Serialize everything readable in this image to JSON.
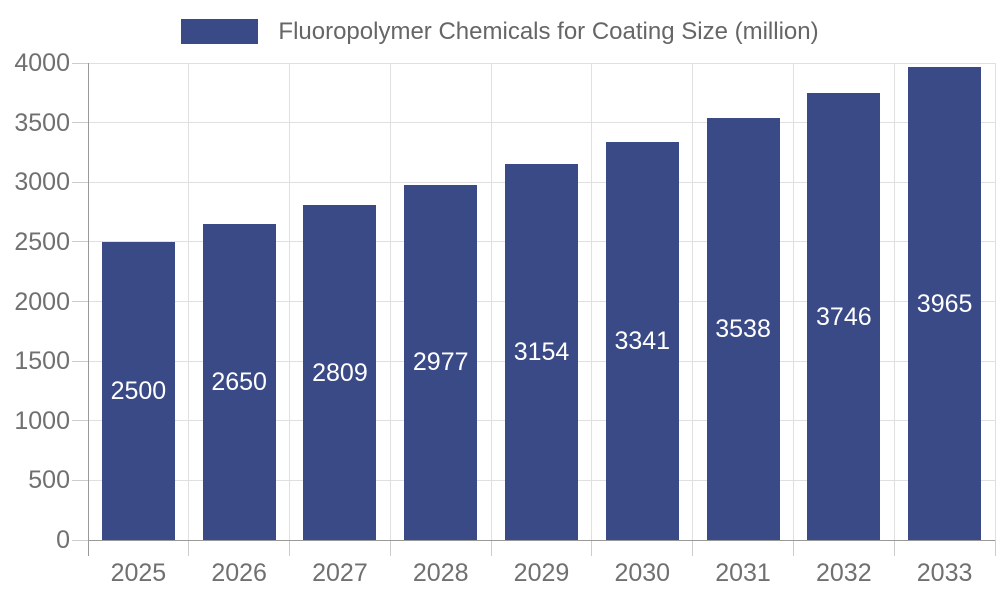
{
  "chart_data": {
    "type": "bar",
    "title": "",
    "legend": "Fluoropolymer Chemicals for Coating Size (million)",
    "categories": [
      "2025",
      "2026",
      "2027",
      "2028",
      "2029",
      "2030",
      "2031",
      "2032",
      "2033"
    ],
    "values": [
      2500,
      2650,
      2809,
      2977,
      3154,
      3341,
      3538,
      3746,
      3965
    ],
    "series": [
      {
        "name": "Fluoropolymer Chemicals for Coating Size (million)",
        "values": [
          2500,
          2650,
          2809,
          2977,
          3154,
          3341,
          3538,
          3746,
          3965
        ]
      }
    ],
    "xlabel": "",
    "ylabel": "",
    "ylim": [
      0,
      4000
    ],
    "ytick_step": 500,
    "ytick_labels": [
      "0",
      "500",
      "1000",
      "1500",
      "2000",
      "2500",
      "3000",
      "3500",
      "4000"
    ],
    "grid": true,
    "legend_position": "top-center",
    "value_labels_inside_bars": true,
    "colors": {
      "bar": "#3A4A87",
      "bar_value_label": "#FFFFFF",
      "axis_label": "#707070",
      "legend_text": "#666666",
      "grid_line": "#E0E0E0",
      "axis_line": "#999999",
      "tick": "#CCCCCC",
      "background": "#FFFFFF"
    }
  }
}
